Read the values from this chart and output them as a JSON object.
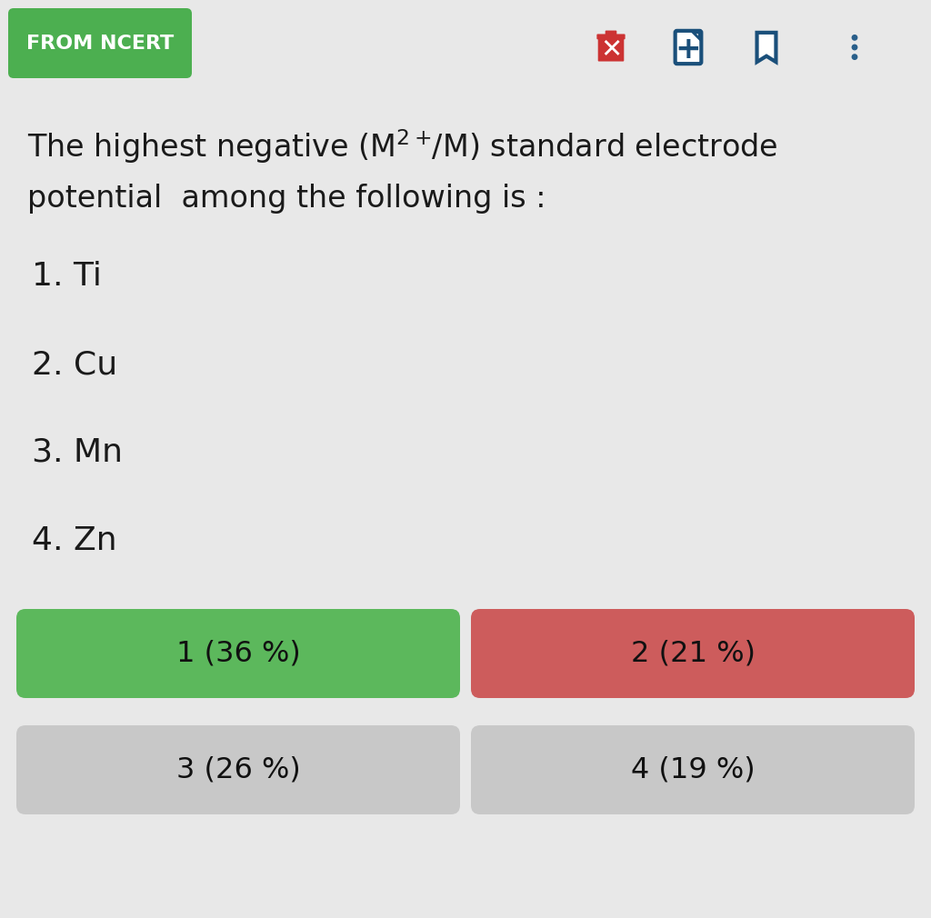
{
  "background_color": "#e8e8e8",
  "from_ncert_label": "FROM NCERT",
  "from_ncert_bg": "#4caf50",
  "from_ncert_text_color": "#ffffff",
  "question_line2": "potential  among the following is :",
  "options": [
    "1. Ti",
    "2. Cu",
    "3. Mn",
    "4. Zn"
  ],
  "option_text_color": "#1a1a1a",
  "option_fontsize": 26,
  "button_labels": [
    "1 (36 %)",
    "2 (21 %)",
    "3 (26 %)",
    "4 (19 %)"
  ],
  "button_colors": [
    "#5cb85c",
    "#cd5c5c",
    "#c8c8c8",
    "#c8c8c8"
  ],
  "button_text_color": "#111111",
  "button_fontsize": 23,
  "icon_delete_color": "#cc3333",
  "icon_blue_color": "#1a4f7a",
  "icon_dots_color": "#2a5f8a"
}
